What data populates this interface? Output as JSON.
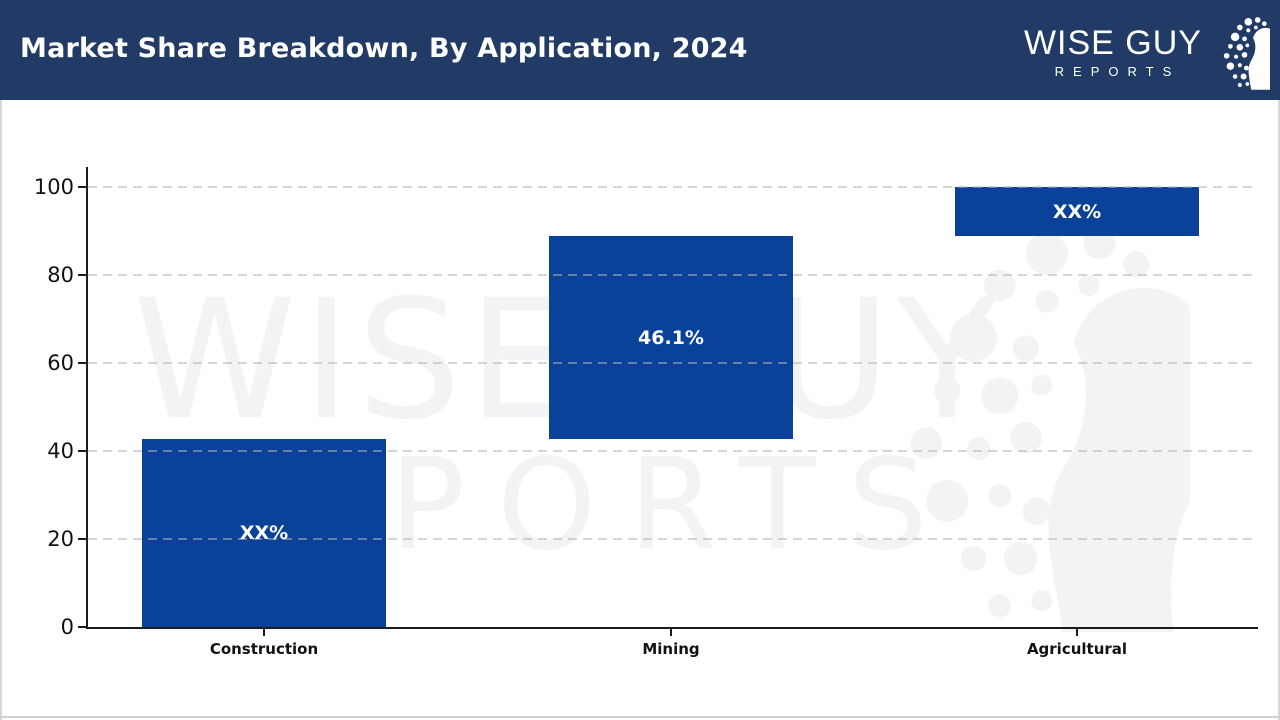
{
  "header": {
    "title": "Market Share Breakdown, By Application, 2024",
    "logo": {
      "name": "WISE GUY",
      "sub": "REPORTS"
    }
  },
  "watermark": {
    "line1": "WISE GUY",
    "line2": "REPORTS"
  },
  "colors": {
    "header_bg": "#213a66",
    "bar": "#0a4299",
    "bar_label": "#ffffff",
    "axis": "#1c1c1c",
    "grid": "#d9d9d9",
    "watermark": "#f3f3f5"
  },
  "chart_data": {
    "type": "bar",
    "subtype": "waterfall",
    "title": "Market Share Breakdown, By Application, 2024",
    "categories": [
      "Construction",
      "Mining",
      "Agricultural"
    ],
    "bars": [
      {
        "category": "Construction",
        "start": 0,
        "end": 42.7,
        "label": "XX%"
      },
      {
        "category": "Mining",
        "start": 42.7,
        "end": 88.8,
        "label": "46.1%"
      },
      {
        "category": "Agricultural",
        "start": 88.8,
        "end": 100,
        "label": "XX%"
      }
    ],
    "xlabel": "",
    "ylabel": "",
    "ylim": [
      0,
      100
    ],
    "yticks": [
      0,
      20,
      40,
      60,
      80,
      100
    ],
    "grid": "horizontal-dashed-over-bars",
    "legend": "none"
  }
}
